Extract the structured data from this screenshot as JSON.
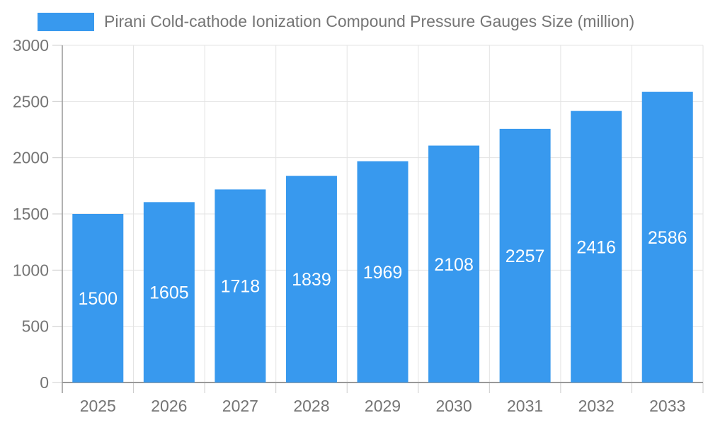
{
  "chart_data": {
    "type": "bar",
    "title": "Pirani Cold-cathode Ionization Compound Pressure Gauges Size (million)",
    "categories": [
      "2025",
      "2026",
      "2027",
      "2028",
      "2029",
      "2030",
      "2031",
      "2032",
      "2033"
    ],
    "values": [
      1500,
      1605,
      1718,
      1839,
      1969,
      2108,
      2257,
      2416,
      2586
    ],
    "xlabel": "",
    "ylabel": "",
    "ylim": [
      0,
      3000
    ],
    "yticks": [
      0,
      500,
      1000,
      1500,
      2000,
      2500,
      3000
    ],
    "grid": true,
    "legend_position": "top-left",
    "bar_label_position": "inside-middle",
    "colors": {
      "bar": "#3899EE",
      "bar_label": "#FFFFFF",
      "axis_text": "#757575",
      "axis_line": "#999999",
      "tick_line": "#CCCCCC",
      "grid_line": "#E3E3E3",
      "background": "#FFFFFF"
    }
  }
}
